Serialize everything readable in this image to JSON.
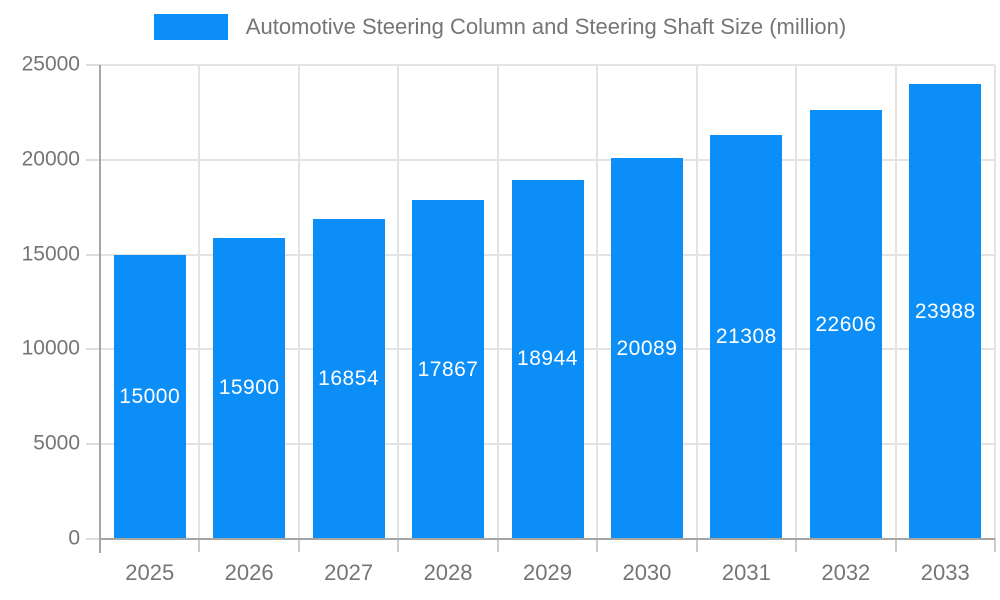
{
  "legend": {
    "label": "Automotive Steering Column and Steering Shaft Size (million)"
  },
  "colors": {
    "bar": "#0b8ef8",
    "bar_label_text": "#ffffff",
    "axis_text": "#757575",
    "grid_line": "#e3e3e3",
    "axis_line": "#a5a5a5",
    "background": "#ffffff"
  },
  "chart_data": {
    "type": "bar",
    "title": "Automotive Steering Column and Steering Shaft Size (million)",
    "categories": [
      "2025",
      "2026",
      "2027",
      "2028",
      "2029",
      "2030",
      "2031",
      "2032",
      "2033"
    ],
    "values": [
      15000,
      15900,
      16854,
      17867,
      18944,
      20089,
      21308,
      22606,
      23988
    ],
    "xlabel": "",
    "ylabel": "",
    "ylim": [
      0,
      25000
    ],
    "yticks": [
      0,
      5000,
      10000,
      15000,
      20000,
      25000
    ],
    "grid": true,
    "legend_position": "top-center",
    "bar_color": "#0b8ef8",
    "value_label_position": "inside-middle"
  }
}
